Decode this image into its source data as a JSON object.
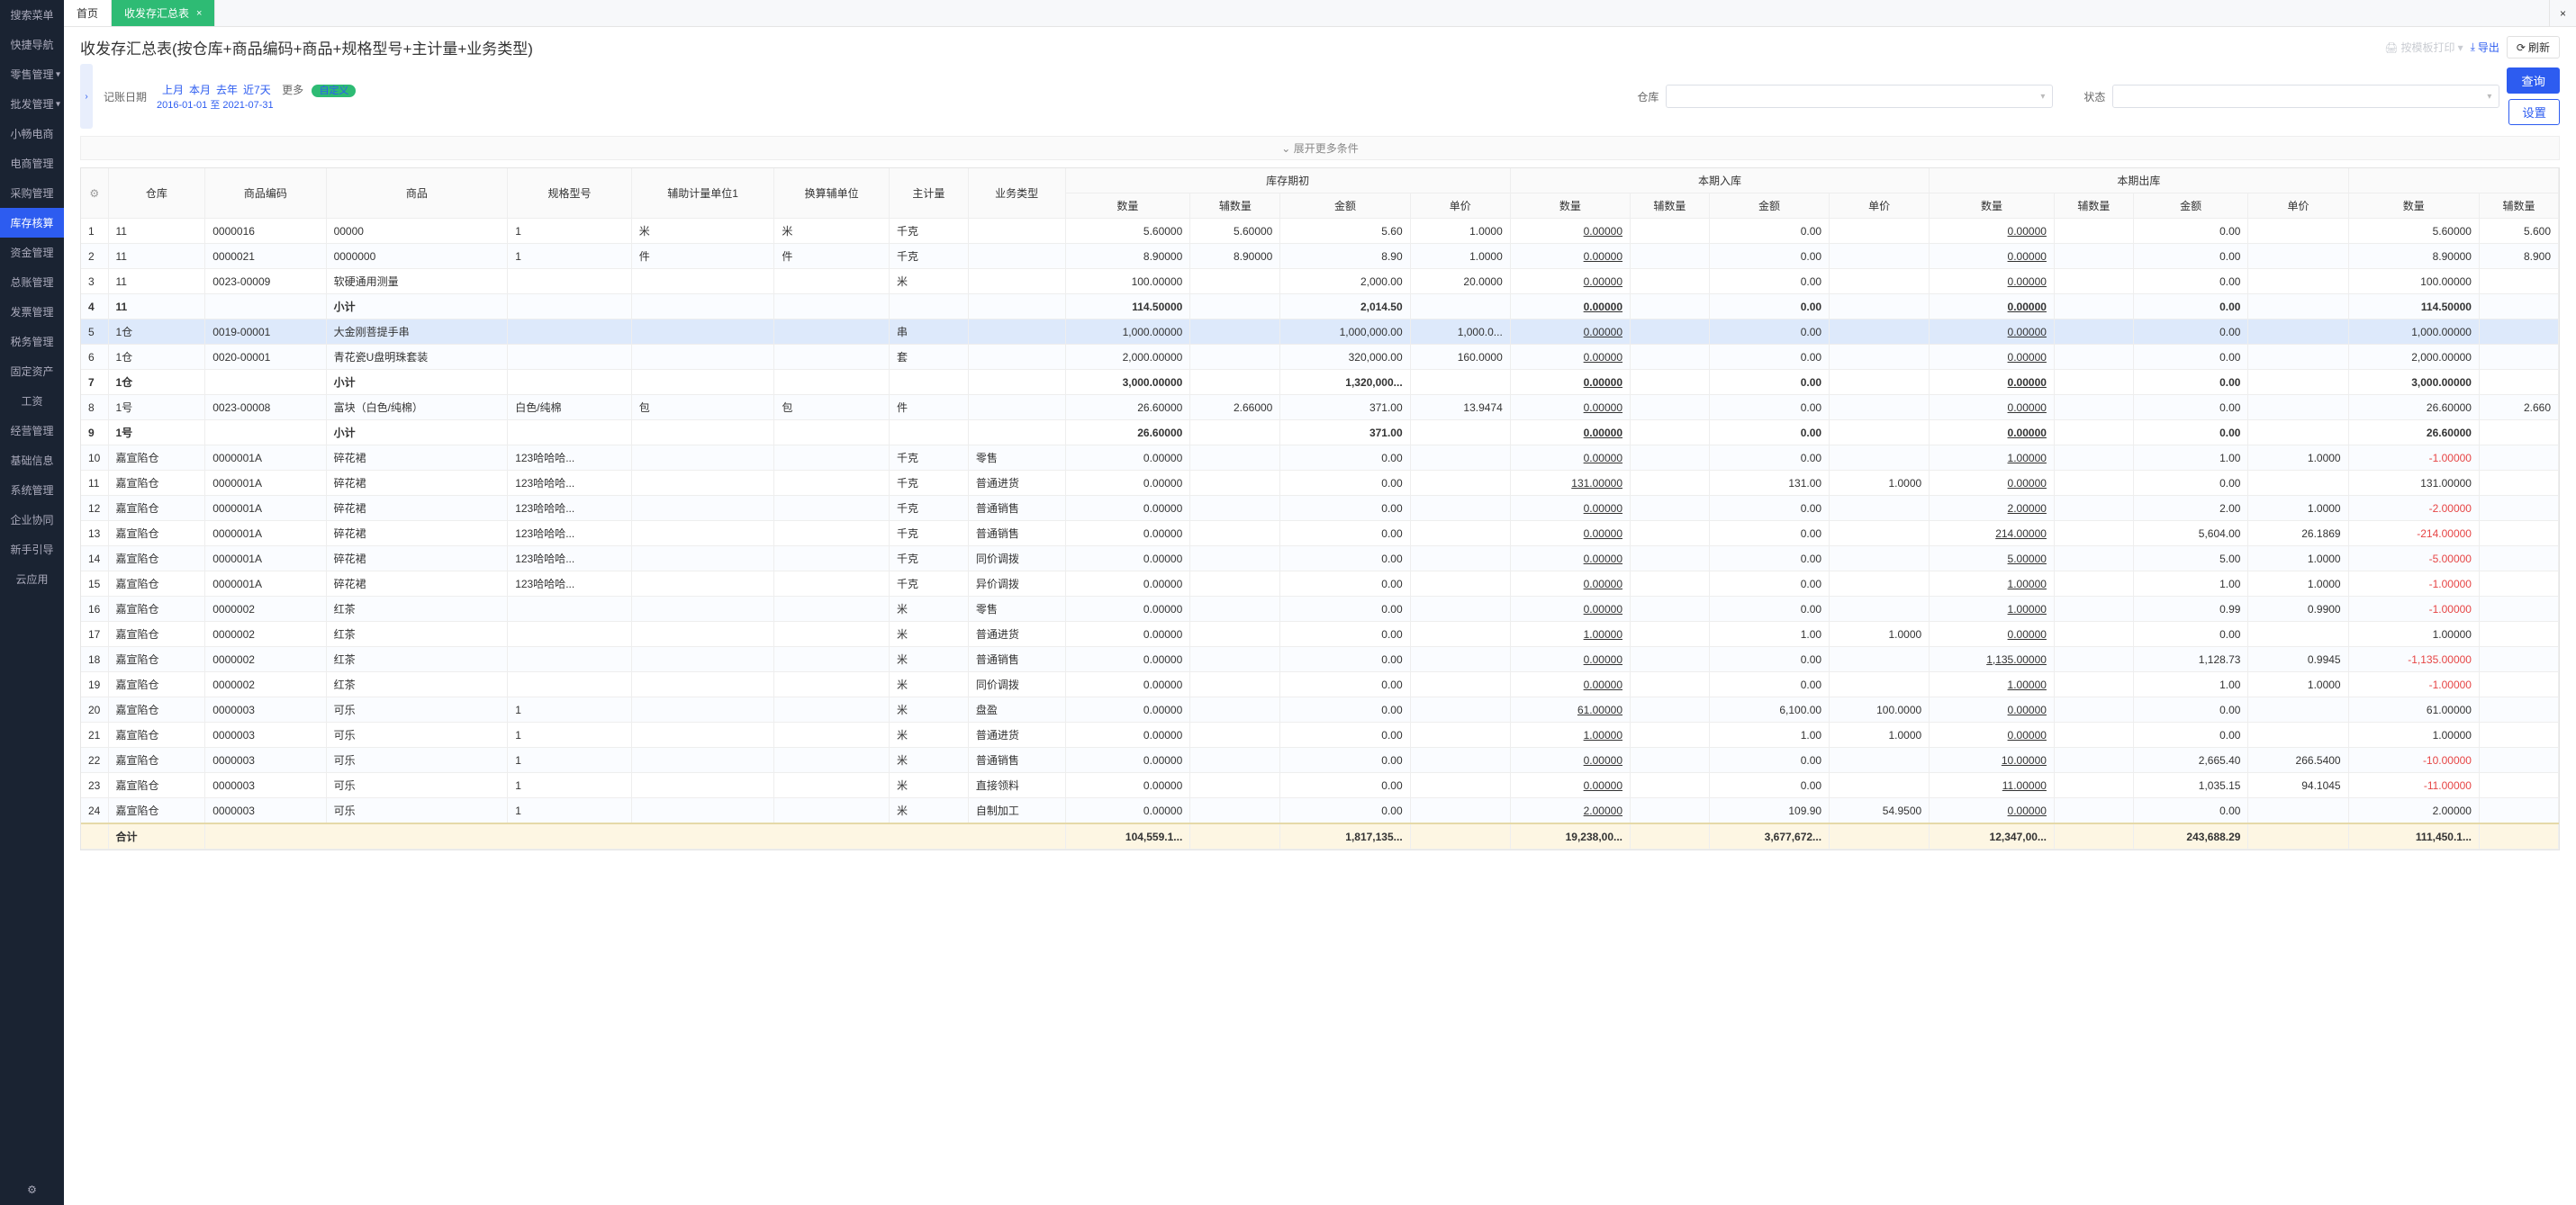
{
  "sidebar": {
    "items": [
      {
        "label": "搜索菜单",
        "arrow": false
      },
      {
        "label": "快捷导航",
        "arrow": false
      },
      {
        "label": "零售管理",
        "arrow": true
      },
      {
        "label": "批发管理",
        "arrow": true
      },
      {
        "label": "小畅电商",
        "arrow": false
      },
      {
        "label": "电商管理",
        "arrow": false
      },
      {
        "label": "采购管理",
        "arrow": false
      },
      {
        "label": "库存核算",
        "arrow": false,
        "active": true
      },
      {
        "label": "资金管理",
        "arrow": false
      },
      {
        "label": "总账管理",
        "arrow": false
      },
      {
        "label": "发票管理",
        "arrow": false
      },
      {
        "label": "税务管理",
        "arrow": false
      },
      {
        "label": "固定资产",
        "arrow": false
      },
      {
        "label": "工资",
        "arrow": false
      },
      {
        "label": "经营管理",
        "arrow": false
      },
      {
        "label": "基础信息",
        "arrow": false
      },
      {
        "label": "系统管理",
        "arrow": false
      },
      {
        "label": "企业协同",
        "arrow": false
      },
      {
        "label": "新手引导",
        "arrow": false
      },
      {
        "label": "云应用",
        "arrow": false
      }
    ]
  },
  "tabs": {
    "home": "首页",
    "active": "收发存汇总表"
  },
  "title": "收发存汇总表(按仓库+商品编码+商品+规格型号+主计量+业务类型)",
  "actions": {
    "print": "按模板打印",
    "export": "导出",
    "refresh": "刷新"
  },
  "filter": {
    "dateLabel": "记账日期",
    "presets": [
      "上月",
      "本月",
      "去年",
      "近7天"
    ],
    "more": "更多",
    "custom": "自定义",
    "range": "2016-01-01 至 2021-07-31",
    "warehouseLabel": "仓库",
    "statusLabel": "状态",
    "query": "查询",
    "setting": "设置",
    "expand": "展开更多条件"
  },
  "columns": {
    "idx": "",
    "warehouse": "仓库",
    "code": "商品编码",
    "product": "商品",
    "spec": "规格型号",
    "aux": "辅助计量单位1",
    "exchange": "换算辅单位",
    "main": "主计量",
    "biztype": "业务类型",
    "groupBegin": "库存期初",
    "groupIn": "本期入库",
    "groupOut": "本期出库",
    "qty": "数量",
    "auxqty": "辅数量",
    "amount": "金额",
    "price": "单价"
  },
  "rows": [
    {
      "n": 1,
      "wh": "11",
      "code": "0000016",
      "prod": "00000",
      "spec": "1",
      "aux": "米",
      "ex": "米",
      "main": "千克",
      "bt": "",
      "b": {
        "qty": "5.60000",
        "aux": "5.60000",
        "amt": "5.60",
        "pr": "1.0000"
      },
      "i": {
        "qty": "0.00000",
        "aux": "",
        "amt": "0.00",
        "pr": ""
      },
      "o": {
        "qty": "0.00000",
        "aux": "",
        "amt": "0.00",
        "pr": ""
      },
      "e": {
        "qty": "5.60000",
        "aux": "5.600"
      }
    },
    {
      "n": 2,
      "wh": "11",
      "code": "0000021",
      "prod": "0000000",
      "spec": "1",
      "aux": "件",
      "ex": "件",
      "main": "千克",
      "bt": "",
      "b": {
        "qty": "8.90000",
        "aux": "8.90000",
        "amt": "8.90",
        "pr": "1.0000"
      },
      "i": {
        "qty": "0.00000",
        "aux": "",
        "amt": "0.00",
        "pr": ""
      },
      "o": {
        "qty": "0.00000",
        "aux": "",
        "amt": "0.00",
        "pr": ""
      },
      "e": {
        "qty": "8.90000",
        "aux": "8.900"
      }
    },
    {
      "n": 3,
      "wh": "11",
      "code": "0023-00009",
      "prod": "软硬通用测量",
      "spec": "",
      "aux": "",
      "ex": "",
      "main": "米",
      "bt": "",
      "b": {
        "qty": "100.00000",
        "aux": "",
        "amt": "2,000.00",
        "pr": "20.0000"
      },
      "i": {
        "qty": "0.00000",
        "aux": "",
        "amt": "0.00",
        "pr": ""
      },
      "o": {
        "qty": "0.00000",
        "aux": "",
        "amt": "0.00",
        "pr": ""
      },
      "e": {
        "qty": "100.00000",
        "aux": ""
      }
    },
    {
      "n": 4,
      "wh": "11",
      "code": "",
      "prod": "小计",
      "sub": true,
      "b": {
        "qty": "114.50000",
        "aux": "",
        "amt": "2,014.50",
        "pr": ""
      },
      "i": {
        "qty": "0.00000",
        "aux": "",
        "amt": "0.00",
        "pr": ""
      },
      "o": {
        "qty": "0.00000",
        "aux": "",
        "amt": "0.00",
        "pr": ""
      },
      "e": {
        "qty": "114.50000",
        "aux": ""
      }
    },
    {
      "n": 5,
      "wh": "1仓",
      "code": "0019-00001",
      "prod": "大金刚菩提手串",
      "spec": "",
      "aux": "",
      "ex": "",
      "main": "串",
      "bt": "",
      "sel": true,
      "b": {
        "qty": "1,000.00000",
        "aux": "",
        "amt": "1,000,000.00",
        "pr": "1,000.0..."
      },
      "i": {
        "qty": "0.00000",
        "aux": "",
        "amt": "0.00",
        "pr": ""
      },
      "o": {
        "qty": "0.00000",
        "aux": "",
        "amt": "0.00",
        "pr": ""
      },
      "e": {
        "qty": "1,000.00000",
        "aux": ""
      }
    },
    {
      "n": 6,
      "wh": "1仓",
      "code": "0020-00001",
      "prod": "青花瓷U盘明珠套装",
      "spec": "",
      "aux": "",
      "ex": "",
      "main": "套",
      "bt": "",
      "b": {
        "qty": "2,000.00000",
        "aux": "",
        "amt": "320,000.00",
        "pr": "160.0000"
      },
      "i": {
        "qty": "0.00000",
        "aux": "",
        "amt": "0.00",
        "pr": ""
      },
      "o": {
        "qty": "0.00000",
        "aux": "",
        "amt": "0.00",
        "pr": ""
      },
      "e": {
        "qty": "2,000.00000",
        "aux": ""
      }
    },
    {
      "n": 7,
      "wh": "1仓",
      "code": "",
      "prod": "小计",
      "sub": true,
      "b": {
        "qty": "3,000.00000",
        "aux": "",
        "amt": "1,320,000...",
        "pr": ""
      },
      "i": {
        "qty": "0.00000",
        "aux": "",
        "amt": "0.00",
        "pr": ""
      },
      "o": {
        "qty": "0.00000",
        "aux": "",
        "amt": "0.00",
        "pr": ""
      },
      "e": {
        "qty": "3,000.00000",
        "aux": ""
      }
    },
    {
      "n": 8,
      "wh": "1号",
      "code": "0023-00008",
      "prod": "富块（白色/纯棉）",
      "spec": "白色/纯棉",
      "aux": "包",
      "ex": "包",
      "main": "件",
      "bt": "",
      "b": {
        "qty": "26.60000",
        "aux": "2.66000",
        "amt": "371.00",
        "pr": "13.9474"
      },
      "i": {
        "qty": "0.00000",
        "aux": "",
        "amt": "0.00",
        "pr": ""
      },
      "o": {
        "qty": "0.00000",
        "aux": "",
        "amt": "0.00",
        "pr": ""
      },
      "e": {
        "qty": "26.60000",
        "aux": "2.660"
      }
    },
    {
      "n": 9,
      "wh": "1号",
      "code": "",
      "prod": "小计",
      "sub": true,
      "b": {
        "qty": "26.60000",
        "aux": "",
        "amt": "371.00",
        "pr": ""
      },
      "i": {
        "qty": "0.00000",
        "aux": "",
        "amt": "0.00",
        "pr": ""
      },
      "o": {
        "qty": "0.00000",
        "aux": "",
        "amt": "0.00",
        "pr": ""
      },
      "e": {
        "qty": "26.60000",
        "aux": ""
      }
    },
    {
      "n": 10,
      "wh": "嘉宣陷仓",
      "code": "0000001A",
      "prod": "碎花裙",
      "spec": "123哈哈哈...",
      "aux": "",
      "ex": "",
      "main": "千克",
      "bt": "零售",
      "b": {
        "qty": "0.00000",
        "aux": "",
        "amt": "0.00",
        "pr": ""
      },
      "i": {
        "qty": "0.00000",
        "aux": "",
        "amt": "0.00",
        "pr": ""
      },
      "o": {
        "qty": "1.00000",
        "aux": "",
        "amt": "1.00",
        "pr": "1.0000",
        "neg": "-1.00000"
      },
      "e": {
        "qty": "-1.00000",
        "neg": true
      }
    },
    {
      "n": 11,
      "wh": "嘉宣陷仓",
      "code": "0000001A",
      "prod": "碎花裙",
      "spec": "123哈哈哈...",
      "aux": "",
      "ex": "",
      "main": "千克",
      "bt": "普通进货",
      "b": {
        "qty": "0.00000",
        "aux": "",
        "amt": "0.00",
        "pr": ""
      },
      "i": {
        "qty": "131.00000",
        "aux": "",
        "amt": "131.00",
        "pr": "1.0000"
      },
      "o": {
        "qty": "0.00000",
        "aux": "",
        "amt": "0.00",
        "pr": ""
      },
      "e": {
        "qty": "131.00000",
        "aux": ""
      }
    },
    {
      "n": 12,
      "wh": "嘉宣陷仓",
      "code": "0000001A",
      "prod": "碎花裙",
      "spec": "123哈哈哈...",
      "aux": "",
      "ex": "",
      "main": "千克",
      "bt": "普通销售",
      "b": {
        "qty": "0.00000",
        "aux": "",
        "amt": "0.00",
        "pr": ""
      },
      "i": {
        "qty": "0.00000",
        "aux": "",
        "amt": "0.00",
        "pr": ""
      },
      "o": {
        "qty": "2.00000",
        "aux": "",
        "amt": "2.00",
        "pr": "1.0000",
        "neg": "-2.00000"
      },
      "e": {
        "qty": "-2.00000",
        "neg": true
      }
    },
    {
      "n": 13,
      "wh": "嘉宣陷仓",
      "code": "0000001A",
      "prod": "碎花裙",
      "spec": "123哈哈哈...",
      "aux": "",
      "ex": "",
      "main": "千克",
      "bt": "普通销售",
      "b": {
        "qty": "0.00000",
        "aux": "",
        "amt": "0.00",
        "pr": ""
      },
      "i": {
        "qty": "0.00000",
        "aux": "",
        "amt": "0.00",
        "pr": ""
      },
      "o": {
        "qty": "214.00000",
        "aux": "",
        "amt": "5,604.00",
        "pr": "26.1869",
        "neg": "-214.00000"
      },
      "e": {
        "qty": "-214.00000",
        "neg": true
      }
    },
    {
      "n": 14,
      "wh": "嘉宣陷仓",
      "code": "0000001A",
      "prod": "碎花裙",
      "spec": "123哈哈哈...",
      "aux": "",
      "ex": "",
      "main": "千克",
      "bt": "同价调拨",
      "b": {
        "qty": "0.00000",
        "aux": "",
        "amt": "0.00",
        "pr": ""
      },
      "i": {
        "qty": "0.00000",
        "aux": "",
        "amt": "0.00",
        "pr": ""
      },
      "o": {
        "qty": "5.00000",
        "aux": "",
        "amt": "5.00",
        "pr": "1.0000",
        "neg": "-5.00000"
      },
      "e": {
        "qty": "-5.00000",
        "neg": true
      }
    },
    {
      "n": 15,
      "wh": "嘉宣陷仓",
      "code": "0000001A",
      "prod": "碎花裙",
      "spec": "123哈哈哈...",
      "aux": "",
      "ex": "",
      "main": "千克",
      "bt": "异价调拨",
      "b": {
        "qty": "0.00000",
        "aux": "",
        "amt": "0.00",
        "pr": ""
      },
      "i": {
        "qty": "0.00000",
        "aux": "",
        "amt": "0.00",
        "pr": ""
      },
      "o": {
        "qty": "1.00000",
        "aux": "",
        "amt": "1.00",
        "pr": "1.0000",
        "neg": "-1.00000"
      },
      "e": {
        "qty": "-1.00000",
        "neg": true
      }
    },
    {
      "n": 16,
      "wh": "嘉宣陷仓",
      "code": "0000002",
      "prod": "红茶",
      "spec": "",
      "aux": "",
      "ex": "",
      "main": "米",
      "bt": "零售",
      "b": {
        "qty": "0.00000",
        "aux": "",
        "amt": "0.00",
        "pr": ""
      },
      "i": {
        "qty": "0.00000",
        "aux": "",
        "amt": "0.00",
        "pr": ""
      },
      "o": {
        "qty": "1.00000",
        "aux": "",
        "amt": "0.99",
        "pr": "0.9900",
        "neg": "-1.00000"
      },
      "e": {
        "qty": "-1.00000",
        "neg": true
      }
    },
    {
      "n": 17,
      "wh": "嘉宣陷仓",
      "code": "0000002",
      "prod": "红茶",
      "spec": "",
      "aux": "",
      "ex": "",
      "main": "米",
      "bt": "普通进货",
      "b": {
        "qty": "0.00000",
        "aux": "",
        "amt": "0.00",
        "pr": ""
      },
      "i": {
        "qty": "1.00000",
        "aux": "",
        "amt": "1.00",
        "pr": "1.0000"
      },
      "o": {
        "qty": "0.00000",
        "aux": "",
        "amt": "0.00",
        "pr": ""
      },
      "e": {
        "qty": "1.00000",
        "aux": ""
      }
    },
    {
      "n": 18,
      "wh": "嘉宣陷仓",
      "code": "0000002",
      "prod": "红茶",
      "spec": "",
      "aux": "",
      "ex": "",
      "main": "米",
      "bt": "普通销售",
      "b": {
        "qty": "0.00000",
        "aux": "",
        "amt": "0.00",
        "pr": ""
      },
      "i": {
        "qty": "0.00000",
        "aux": "",
        "amt": "0.00",
        "pr": ""
      },
      "o": {
        "qty": "1,135.00000",
        "aux": "",
        "amt": "1,128.73",
        "pr": "0.9945",
        "neg": "-1,135.00000"
      },
      "e": {
        "qty": "-1,135.00000",
        "neg": true
      }
    },
    {
      "n": 19,
      "wh": "嘉宣陷仓",
      "code": "0000002",
      "prod": "红茶",
      "spec": "",
      "aux": "",
      "ex": "",
      "main": "米",
      "bt": "同价调拨",
      "b": {
        "qty": "0.00000",
        "aux": "",
        "amt": "0.00",
        "pr": ""
      },
      "i": {
        "qty": "0.00000",
        "aux": "",
        "amt": "0.00",
        "pr": ""
      },
      "o": {
        "qty": "1.00000",
        "aux": "",
        "amt": "1.00",
        "pr": "1.0000",
        "neg": "-1.00000"
      },
      "e": {
        "qty": "-1.00000",
        "neg": true
      }
    },
    {
      "n": 20,
      "wh": "嘉宣陷仓",
      "code": "0000003",
      "prod": "可乐",
      "spec": "1",
      "aux": "",
      "ex": "",
      "main": "米",
      "bt": "盘盈",
      "b": {
        "qty": "0.00000",
        "aux": "",
        "amt": "0.00",
        "pr": ""
      },
      "i": {
        "qty": "61.00000",
        "aux": "",
        "amt": "6,100.00",
        "pr": "100.0000"
      },
      "o": {
        "qty": "0.00000",
        "aux": "",
        "amt": "0.00",
        "pr": ""
      },
      "e": {
        "qty": "61.00000",
        "aux": ""
      }
    },
    {
      "n": 21,
      "wh": "嘉宣陷仓",
      "code": "0000003",
      "prod": "可乐",
      "spec": "1",
      "aux": "",
      "ex": "",
      "main": "米",
      "bt": "普通进货",
      "b": {
        "qty": "0.00000",
        "aux": "",
        "amt": "0.00",
        "pr": ""
      },
      "i": {
        "qty": "1.00000",
        "aux": "",
        "amt": "1.00",
        "pr": "1.0000"
      },
      "o": {
        "qty": "0.00000",
        "aux": "",
        "amt": "0.00",
        "pr": ""
      },
      "e": {
        "qty": "1.00000",
        "aux": ""
      }
    },
    {
      "n": 22,
      "wh": "嘉宣陷仓",
      "code": "0000003",
      "prod": "可乐",
      "spec": "1",
      "aux": "",
      "ex": "",
      "main": "米",
      "bt": "普通销售",
      "b": {
        "qty": "0.00000",
        "aux": "",
        "amt": "0.00",
        "pr": ""
      },
      "i": {
        "qty": "0.00000",
        "aux": "",
        "amt": "0.00",
        "pr": ""
      },
      "o": {
        "qty": "10.00000",
        "aux": "",
        "amt": "2,665.40",
        "pr": "266.5400",
        "neg": "-10.00000"
      },
      "e": {
        "qty": "-10.00000",
        "neg": true
      }
    },
    {
      "n": 23,
      "wh": "嘉宣陷仓",
      "code": "0000003",
      "prod": "可乐",
      "spec": "1",
      "aux": "",
      "ex": "",
      "main": "米",
      "bt": "直接领料",
      "b": {
        "qty": "0.00000",
        "aux": "",
        "amt": "0.00",
        "pr": ""
      },
      "i": {
        "qty": "0.00000",
        "aux": "",
        "amt": "0.00",
        "pr": ""
      },
      "o": {
        "qty": "11.00000",
        "aux": "",
        "amt": "1,035.15",
        "pr": "94.1045",
        "neg": "-11.00000"
      },
      "e": {
        "qty": "-11.00000",
        "neg": true
      }
    },
    {
      "n": 24,
      "wh": "嘉宣陷仓",
      "code": "0000003",
      "prod": "可乐",
      "spec": "1",
      "aux": "",
      "ex": "",
      "main": "米",
      "bt": "自制加工",
      "b": {
        "qty": "0.00000",
        "aux": "",
        "amt": "0.00",
        "pr": ""
      },
      "i": {
        "qty": "2.00000",
        "aux": "",
        "amt": "109.90",
        "pr": "54.9500"
      },
      "o": {
        "qty": "0.00000",
        "aux": "",
        "amt": "0.00",
        "pr": ""
      },
      "e": {
        "qty": "2.00000",
        "aux": ""
      }
    }
  ],
  "total": {
    "label": "合计",
    "b": {
      "qty": "104,559.1...",
      "amt": "1,817,135..."
    },
    "i": {
      "qty": "19,238,00...",
      "amt": "3,677,672..."
    },
    "o": {
      "qty": "12,347,00...",
      "amt": "243,688.29"
    },
    "e": {
      "qty": "111,450.1..."
    }
  }
}
